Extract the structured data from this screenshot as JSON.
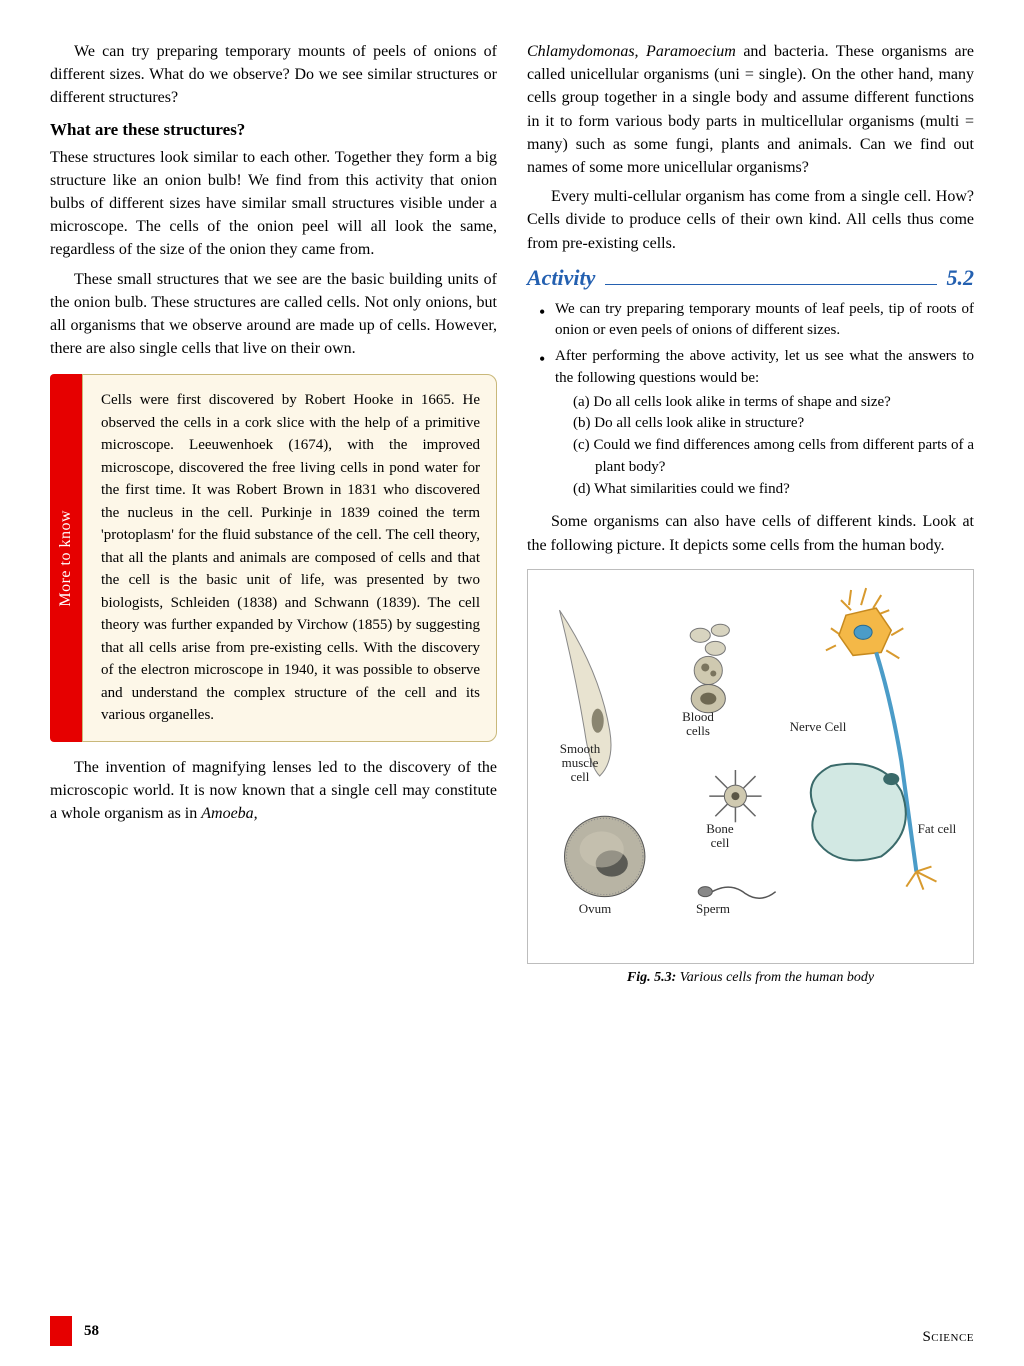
{
  "left": {
    "intro": "We can try preparing temporary mounts of peels of onions of different sizes. What do we observe? Do we see similar structures or different structures?",
    "heading": "What are these structures?",
    "para1": "These structures look similar to each other. Together they form a big structure like an onion bulb! We find from this activity that onion bulbs of different sizes have similar small structures visible under a microscope. The cells of the onion peel will all look the same, regardless of the size of the onion they came from.",
    "para2": "These small structures that we see are the basic building units of the onion bulb. These structures are called cells. Not only onions, but all organisms that we observe around are made up of cells. However, there are also single cells that live on their own.",
    "mtk_label": "More to know",
    "mtk_text": "Cells were first discovered by Robert Hooke in 1665. He observed the cells in a cork slice with the help of a primitive microscope. Leeuwenhoek (1674), with the improved microscope, discovered the free living cells in pond water for the first time. It was Robert Brown in 1831 who discovered the nucleus in the cell. Purkinje in 1839 coined the term 'protoplasm' for the fluid substance of the cell. The cell theory, that all the plants and animals are composed of cells and that the cell is the basic unit of life, was presented by two biologists, Schleiden (1838) and Schwann (1839). The cell theory was further expanded by Virchow (1855) by suggesting that all cells arise from pre-existing cells. With the discovery of the electron microscope in 1940, it was possible to observe and understand the complex structure of the cell and its various organelles.",
    "para3a": "The invention of magnifying lenses led to the discovery of the microscopic world. It is now known that a single cell may constitute a whole organism as in ",
    "para3b": "Amoeba,"
  },
  "right": {
    "para1a": "Chlamydomonas, Paramoecium",
    "para1b": " and bacteria. These organisms are called unicellular organisms (uni = single). On the other hand, many cells group together in a single body and assume different functions in it to form various body parts in multicellular organisms (multi = many) such as some fungi, plants and animals. Can we find out names of some more unicellular organisms?",
    "para2": "Every multi-cellular organism has come from a single cell. How? Cells divide to produce cells of their own kind. All cells thus come from pre-existing cells.",
    "activity_title": "Activity",
    "activity_num": "5.2",
    "act_item1": "We can try preparing temporary mounts of leaf peels, tip of roots of onion or even peels of onions of different sizes.",
    "act_item2": "After performing the above activity, let us see what the answers to the following questions would be:",
    "sub_a": "(a) Do all cells look alike in terms of shape and size?",
    "sub_b": "(b) Do all cells look alike in structure?",
    "sub_c": "(c) Could we find differences among cells from different parts of a plant body?",
    "sub_d": "(d) What similarities could we find?",
    "para3": "Some organisms can also have cells of different kinds. Look at the following picture. It depicts some cells from the human body.",
    "labels": {
      "smooth": "Smooth\nmuscle\ncell",
      "blood": "Blood\ncells",
      "nerve": "Nerve Cell",
      "ovum": "Ovum",
      "bone": "Bone\ncell",
      "sperm": "Sperm",
      "fat": "Fat cell"
    },
    "caption_b": "Fig. 5.3:",
    "caption_i": " Various cells from the human body"
  },
  "footer": {
    "page": "58",
    "subject": "Science"
  },
  "colors": {
    "red": "#e60000",
    "blue": "#2460b0",
    "cream": "#fdf7e8",
    "neuron_fill": "#f4b847",
    "neuron_axon": "#4b9cc8",
    "fat_fill": "#d2e8e3",
    "ovum_dark": "#5a5a54",
    "ovum_light": "#b8b4a4"
  }
}
